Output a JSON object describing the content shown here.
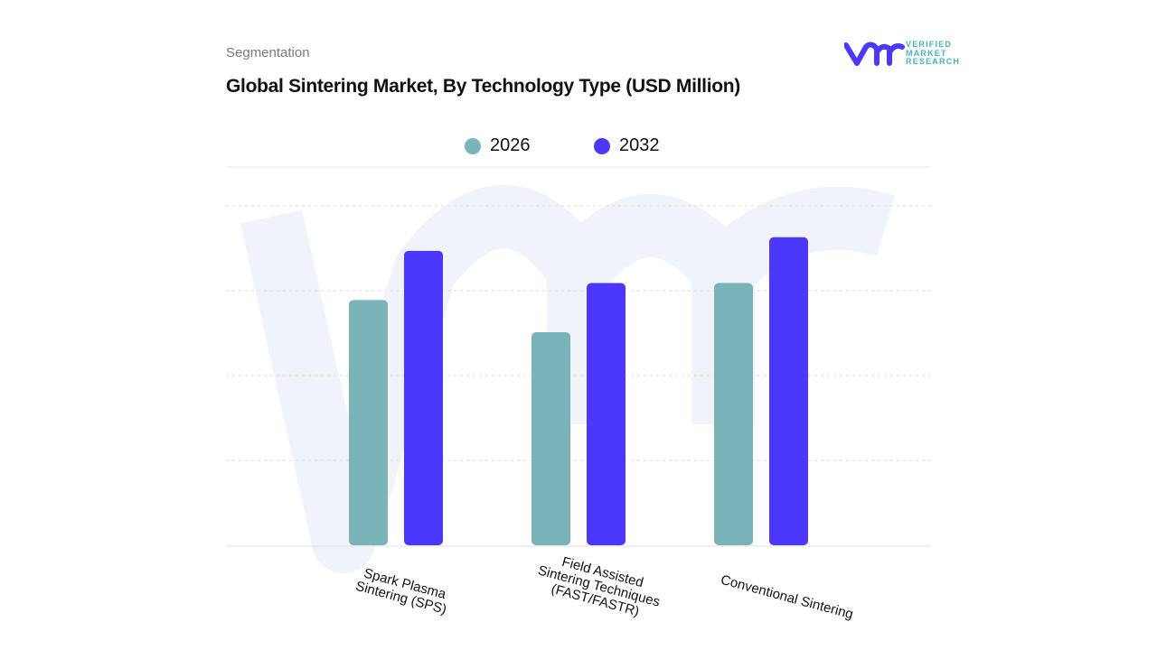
{
  "header": {
    "segment_label": "Segmentation",
    "title": "Global Sintering Market, By Technology Type (USD Million)"
  },
  "logo": {
    "text": "VERIFIED MARKET RESEARCH",
    "line1": "VERIFIED",
    "line2": "MARKET",
    "line3": "RESEARCH"
  },
  "colors": {
    "series_2026": "#7ab4b8",
    "series_2032": "#4b38fa",
    "watermark": "#f1f3fb",
    "grid": "#e6e6e6"
  },
  "chart_data": {
    "type": "bar",
    "title": "Global Sintering Market, By Technology Type (USD Million)",
    "categories": [
      "Spark Plasma Sintering (SPS)",
      "Field Assisted Sintering Techniques (FAST/FASTR)",
      "Conventional Sintering"
    ],
    "category_lines": [
      [
        "Spark Plasma",
        "Sintering (SPS)"
      ],
      [
        "Field Assisted",
        "Sintering Techniques",
        "(FAST/FASTR)"
      ],
      [
        "Conventional Sintering"
      ]
    ],
    "series": [
      {
        "name": "2026",
        "values": [
          2.89,
          2.51,
          3.09
        ]
      },
      {
        "name": "2032",
        "values": [
          3.47,
          3.09,
          3.63
        ]
      }
    ],
    "ylim": [
      0,
      4
    ],
    "y_tick_labels_shown": false,
    "grid": true,
    "legend": "top-center",
    "xlabel": "",
    "ylabel": ""
  }
}
